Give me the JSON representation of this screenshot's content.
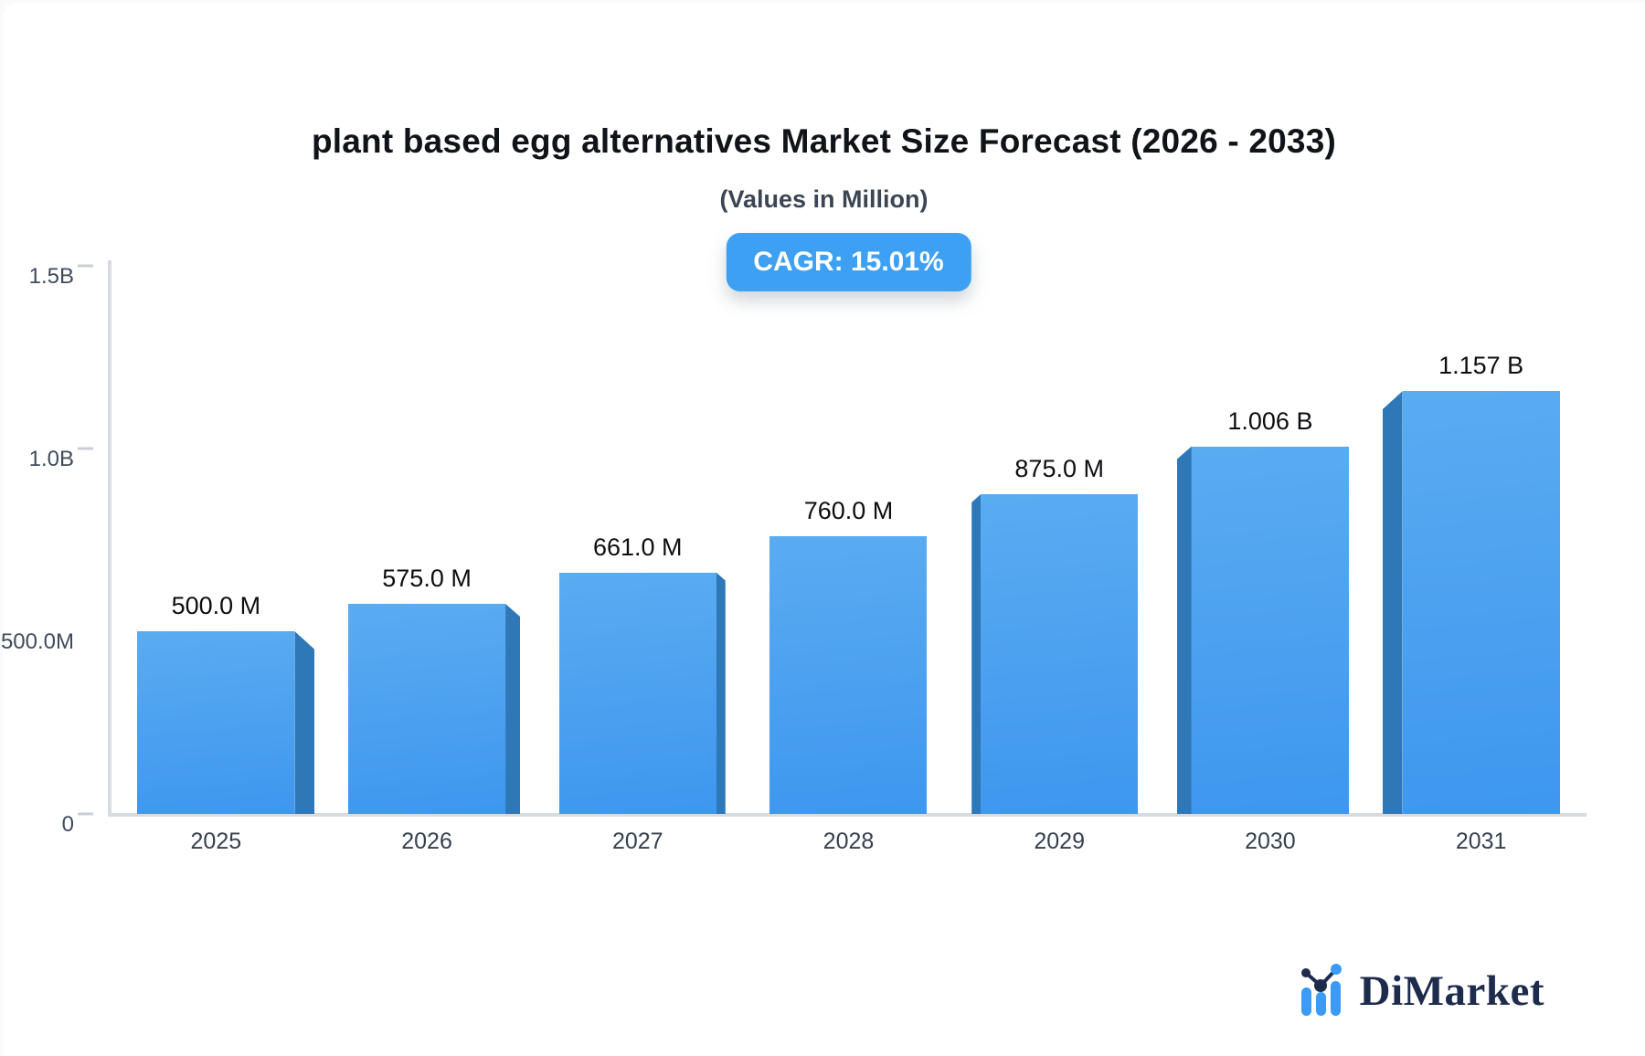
{
  "page": {
    "title": "plant based egg alternatives Market Size Forecast (2026 - 2033)",
    "subtitle": "(Values in Million)",
    "cagr_label": "CAGR: 15.01%"
  },
  "chart_data": {
    "type": "bar",
    "title": "plant based egg alternatives Market Size Forecast (2026 - 2033)",
    "subtitle": "(Values in Million)",
    "cagr": "15.01%",
    "categories": [
      "2025",
      "2026",
      "2027",
      "2028",
      "2029",
      "2030",
      "2031"
    ],
    "values": [
      500.0,
      575.0,
      661.0,
      760.0,
      875.0,
      1006.0,
      1157.0
    ],
    "value_labels": [
      "500.0 M",
      "575.0 M",
      "661.0 M",
      "760.0 M",
      "875.0 M",
      "1.006 B",
      "1.157 B"
    ],
    "unit_suffix_million": "M",
    "unit_suffix_billion": "B",
    "y_axis": {
      "ylim": [
        0,
        1500
      ],
      "ticks": [
        {
          "value": 0,
          "label": "0",
          "dash": true
        },
        {
          "value": 500,
          "label": "500.0M",
          "dash": false
        },
        {
          "value": 1000,
          "label": "1.0B",
          "dash": true
        },
        {
          "value": 1500,
          "label": "1.5B",
          "dash": true
        }
      ]
    },
    "layout": {
      "grid": false,
      "legend": false,
      "bar_style": "3d-perspective-center-vanishing"
    }
  },
  "footer": {
    "logo_text": "DiMarket",
    "logo_icon": "bar-chart-trend-icon"
  },
  "colors": {
    "bar_top": "#5aacf1",
    "bar_bottom": "#3e97ef",
    "bar_side": "#2e78b8",
    "badge_bg": "#3da0f2",
    "badge_text": "#ffffff",
    "axis_line": "#d8dbe0",
    "tick_text": "#3f4c5e",
    "year_text": "#36404f",
    "value_text": "#0c0e11",
    "title_text": "#101318",
    "subtitle_text": "#3c4553",
    "logo_navy": "#1d2b4d",
    "logo_blue": "#3b9bf7"
  }
}
